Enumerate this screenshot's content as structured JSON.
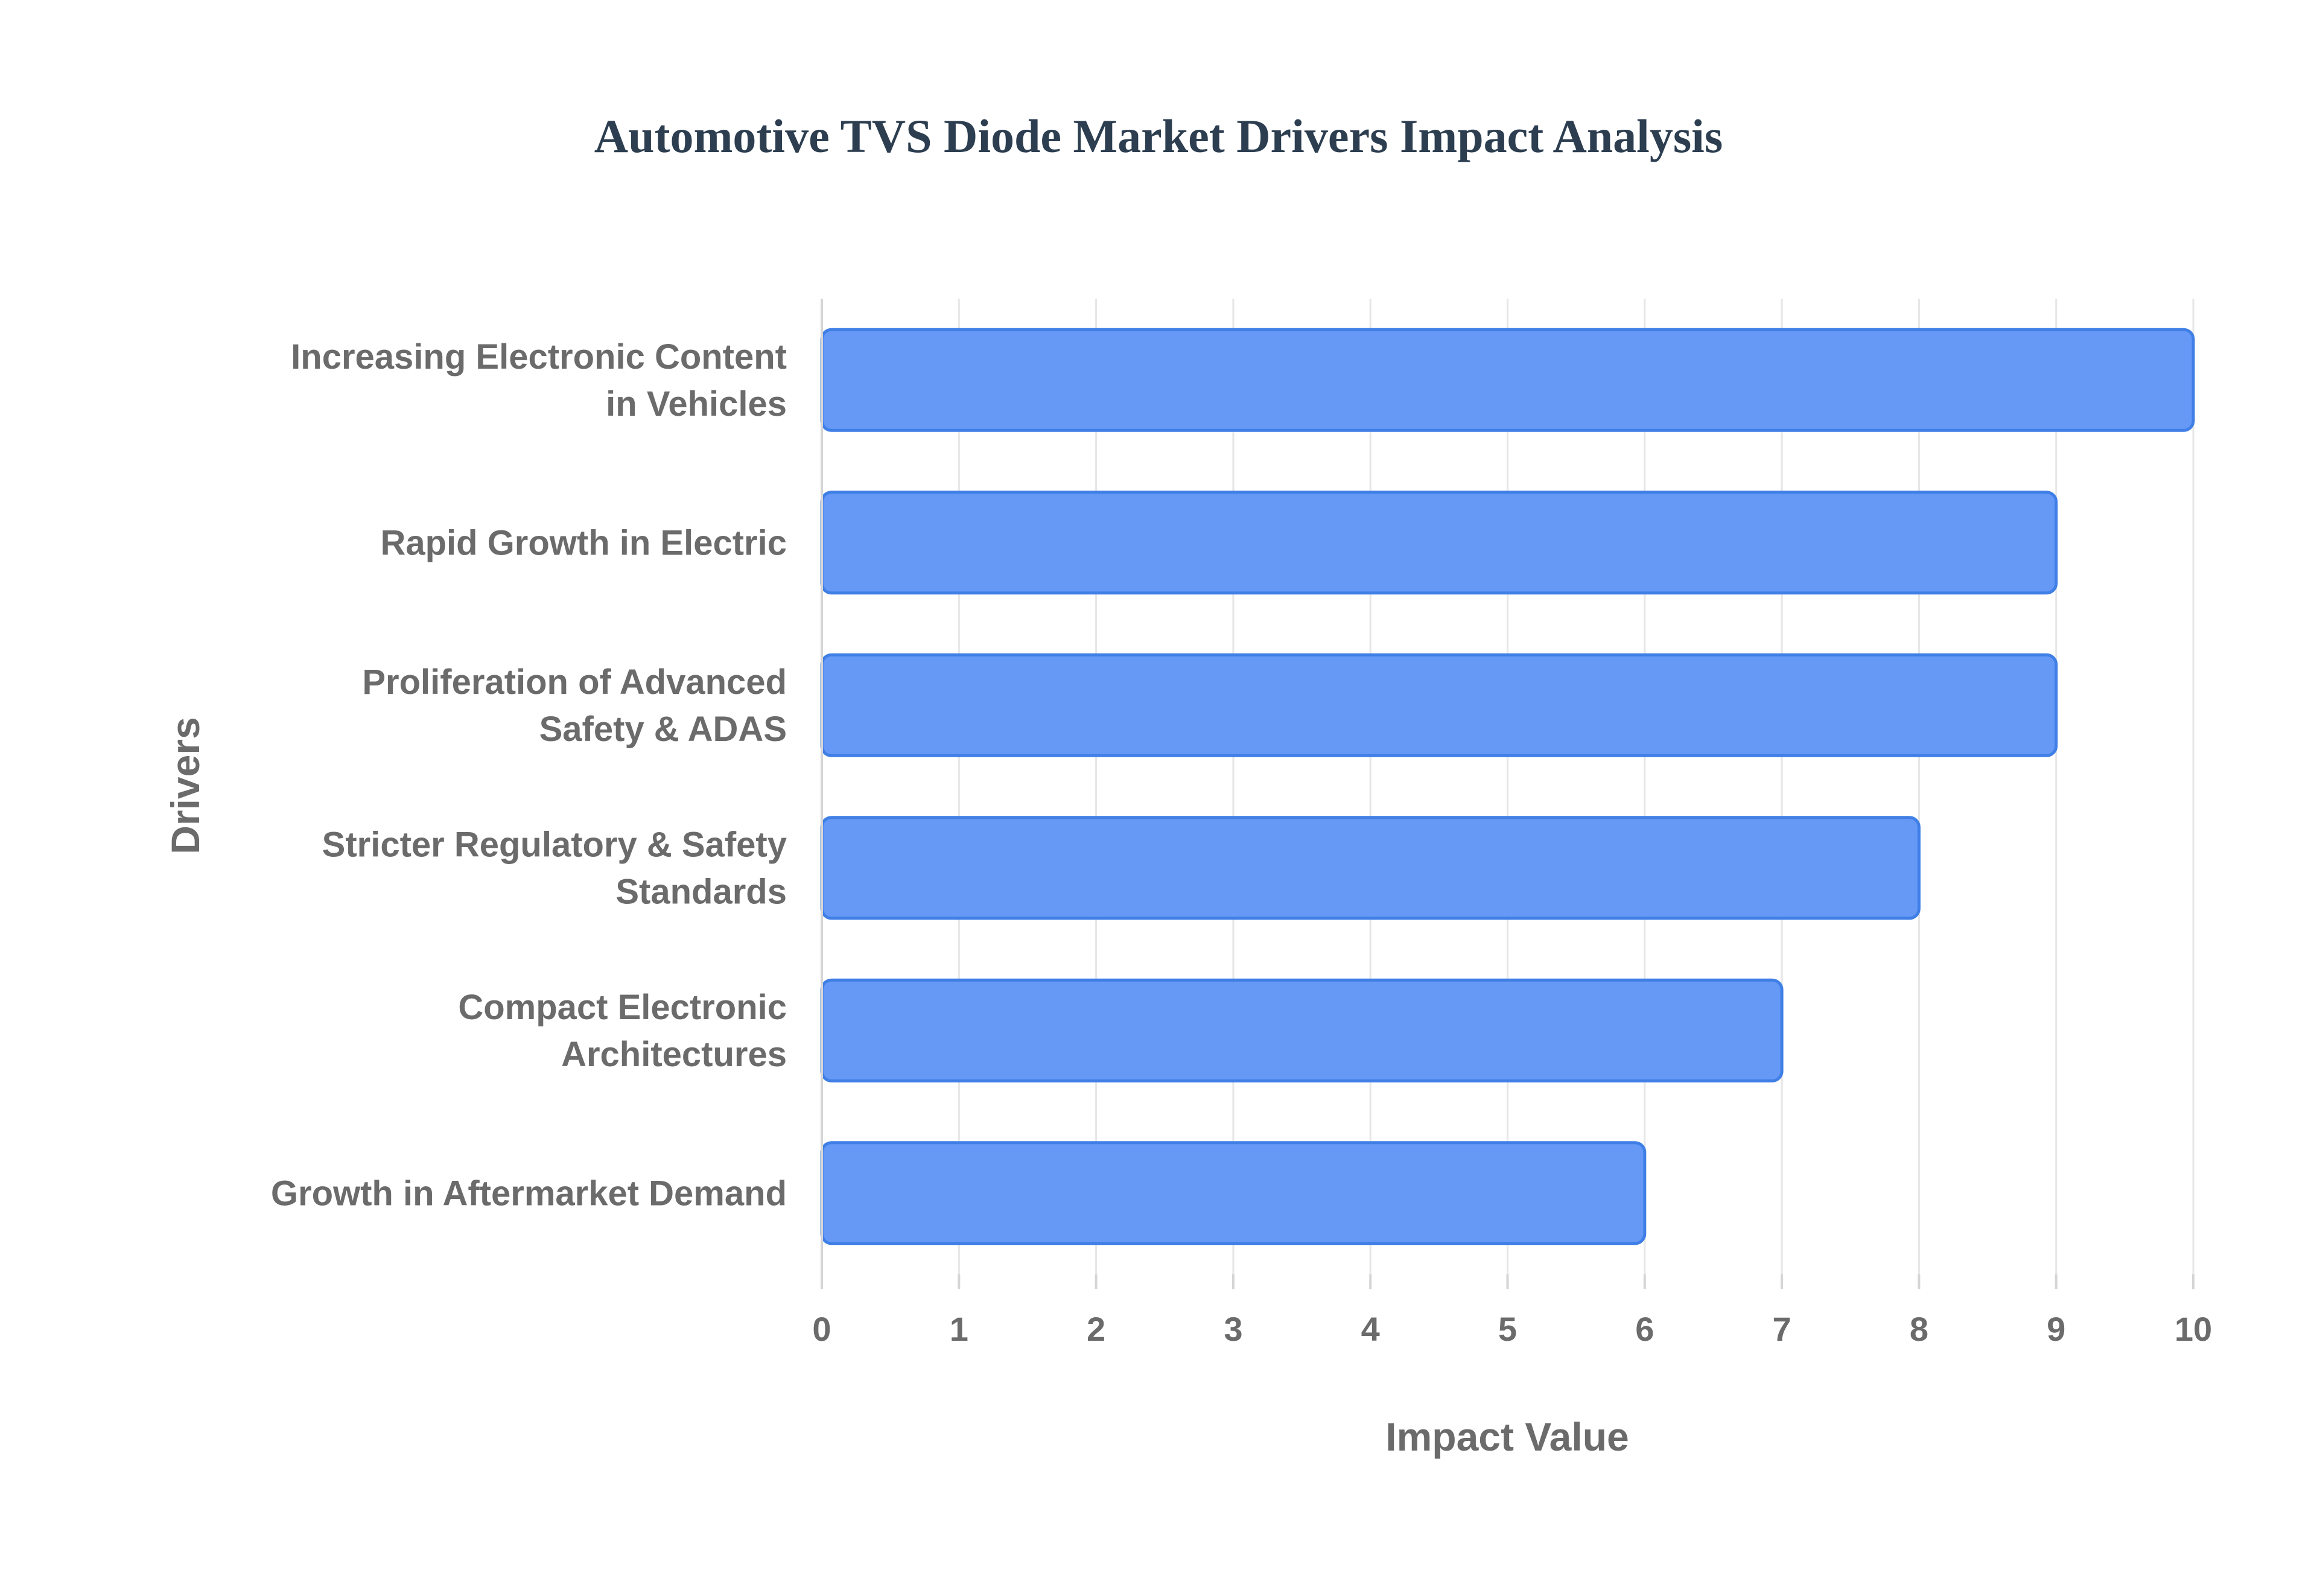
{
  "chart_data": {
    "type": "bar",
    "orientation": "horizontal",
    "title": "Automotive TVS Diode Market Drivers Impact Analysis",
    "xlabel": "Impact Value",
    "ylabel": "Drivers",
    "categories": [
      [
        "Increasing Electronic Content",
        "in Vehicles"
      ],
      [
        "Rapid Growth in Electric"
      ],
      [
        "Proliferation of Advanced",
        "Safety & ADAS"
      ],
      [
        "Stricter Regulatory & Safety",
        "Standards"
      ],
      [
        "Compact Electronic",
        "Architectures"
      ],
      [
        "Growth in Aftermarket Demand"
      ]
    ],
    "values": [
      10,
      9,
      9,
      8,
      7,
      6
    ],
    "xlim": [
      0,
      10
    ],
    "xticks": [
      0,
      1,
      2,
      3,
      4,
      5,
      6,
      7,
      8,
      9,
      10
    ],
    "grid": true,
    "bar_color": "#6699f5",
    "bar_edge_color": "#3f7fe6"
  }
}
